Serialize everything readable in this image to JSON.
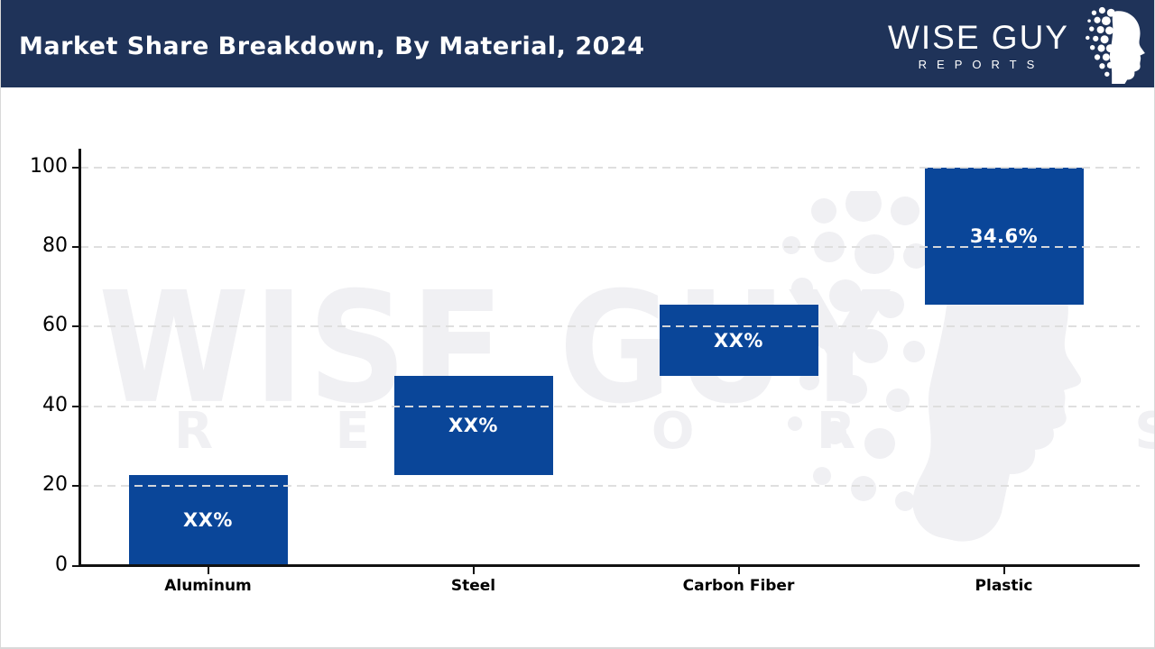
{
  "header": {
    "title": "Market Share Breakdown, By Material, 2024",
    "logo": {
      "line1": "WISE GUY",
      "line2": "REPORTS"
    }
  },
  "watermark": {
    "line1": "WISE GUY",
    "line2": "R E P O R T S"
  },
  "icons": {
    "logo_head": "dot-head-profile",
    "watermark_head": "dot-head-profile"
  },
  "chart_data": {
    "type": "bar",
    "subtype": "floating-waterfall",
    "title": "Market Share Breakdown, By Material, 2024",
    "xlabel": "",
    "ylabel": "",
    "ylim": [
      0,
      100
    ],
    "yticks": [
      0,
      20,
      40,
      60,
      80,
      100
    ],
    "grid": "horizontal-dashed",
    "legend": "none",
    "categories": [
      "Aluminum",
      "Steel",
      "Carbon Fiber",
      "Plastic"
    ],
    "bars": [
      {
        "category": "Aluminum",
        "start": 0,
        "end": 22.7,
        "value_label": "XX%"
      },
      {
        "category": "Steel",
        "start": 22.7,
        "end": 47.7,
        "value_label": "XX%"
      },
      {
        "category": "Carbon Fiber",
        "start": 47.7,
        "end": 65.4,
        "value_label": "XX%"
      },
      {
        "category": "Plastic",
        "start": 65.4,
        "end": 100,
        "value_label": "34.6%"
      }
    ]
  },
  "colors": {
    "header_bg": "#1f3359",
    "bar": "#0a4699",
    "bar_label": "#ffffff",
    "axis": "#111111",
    "grid": "#dddddd",
    "watermark": "#f0f0f3"
  }
}
